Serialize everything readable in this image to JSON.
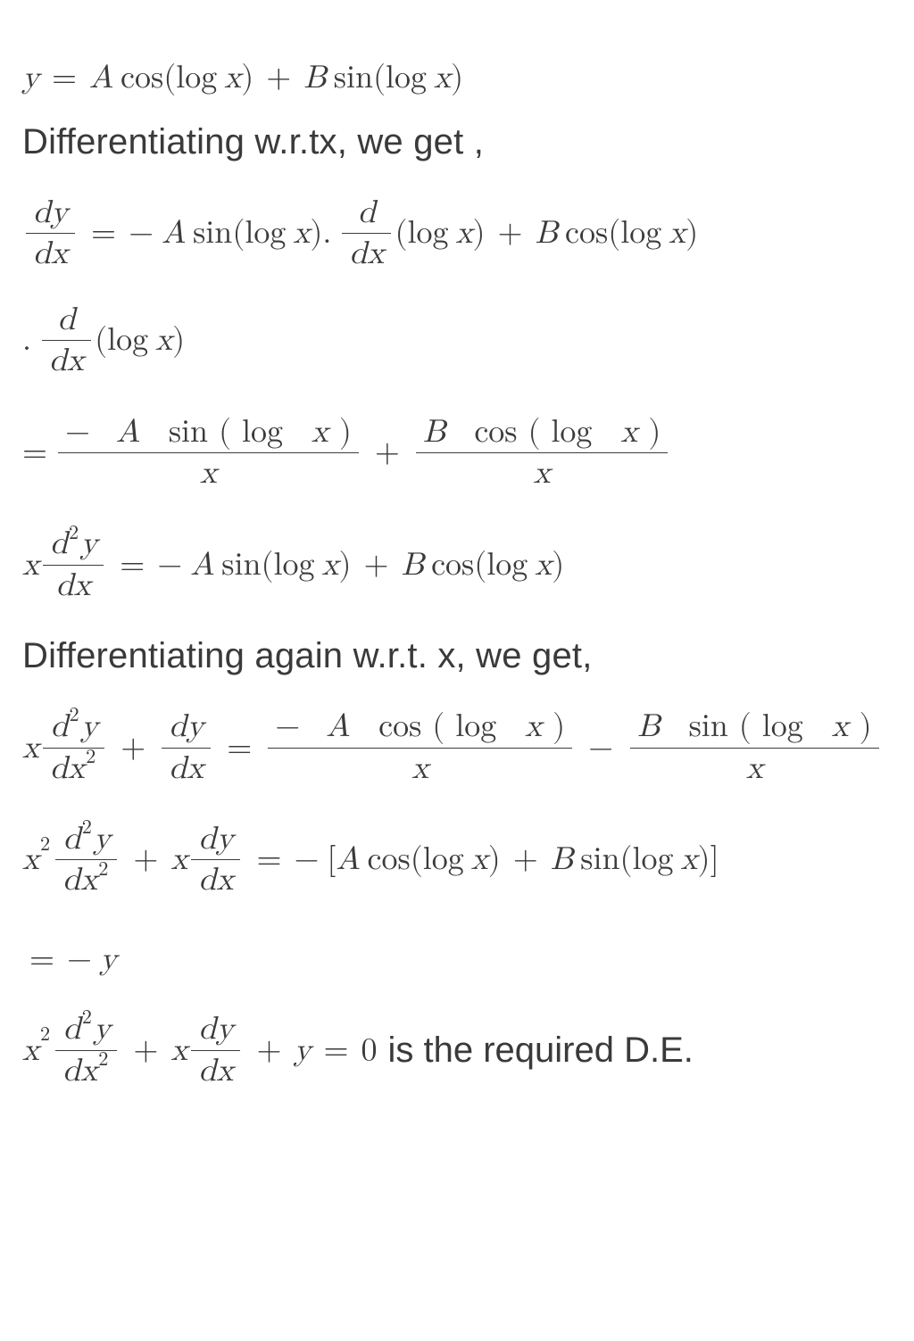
{
  "colors": {
    "text": "#3b3b3b",
    "prose": "#3a3a3a",
    "rule": "#3b3b3b",
    "background": "#ffffff"
  },
  "typography": {
    "math_font": "Times New Roman / Computer Modern",
    "prose_font": "Arial",
    "math_fontsize_pt": 27,
    "prose_fontsize_pt": 30
  },
  "sym": {
    "y": "y",
    "x": "x",
    "A": "A",
    "B": "B",
    "d": "d",
    "eq": "=",
    "plus": "+",
    "minus": "−",
    "dot": ".",
    "lp": "(",
    "rp": ")",
    "lbr": "[",
    "rbr": "]",
    "zero": "0",
    "two": "2",
    "cos": "cos",
    "sin": "sin",
    "log": "log"
  },
  "lines": {
    "l1_prose": "Differentiating w.r.tx, we get ,",
    "l2_prose": "Differentiating again w.r.t. x, we get,",
    "final_text": "is the required D.E."
  },
  "equations": {
    "eq1": "y = A cos(log x) + B sin(log x)",
    "eq2": "dy/dx = − A sin(log x) · d/dx(log x) + B cos(log x)",
    "eq2_cont": "· d/dx(log x)",
    "eq3": "= (− A sin(log x))/x + (B cos(log x))/x",
    "eq4": "x d²y/dx = − A sin(log x) + B cos(log x)",
    "eq5": "x d²y/dx² + dy/dx = (− A cos(log x))/x − (B sin(log x))/x",
    "eq6": "x² d²y/dx² + x dy/dx = − [A cos(log x) + B sin(log x)]",
    "eq7": "= − y",
    "eq8": "x² d²y/dx² + x dy/dx + y = 0"
  }
}
